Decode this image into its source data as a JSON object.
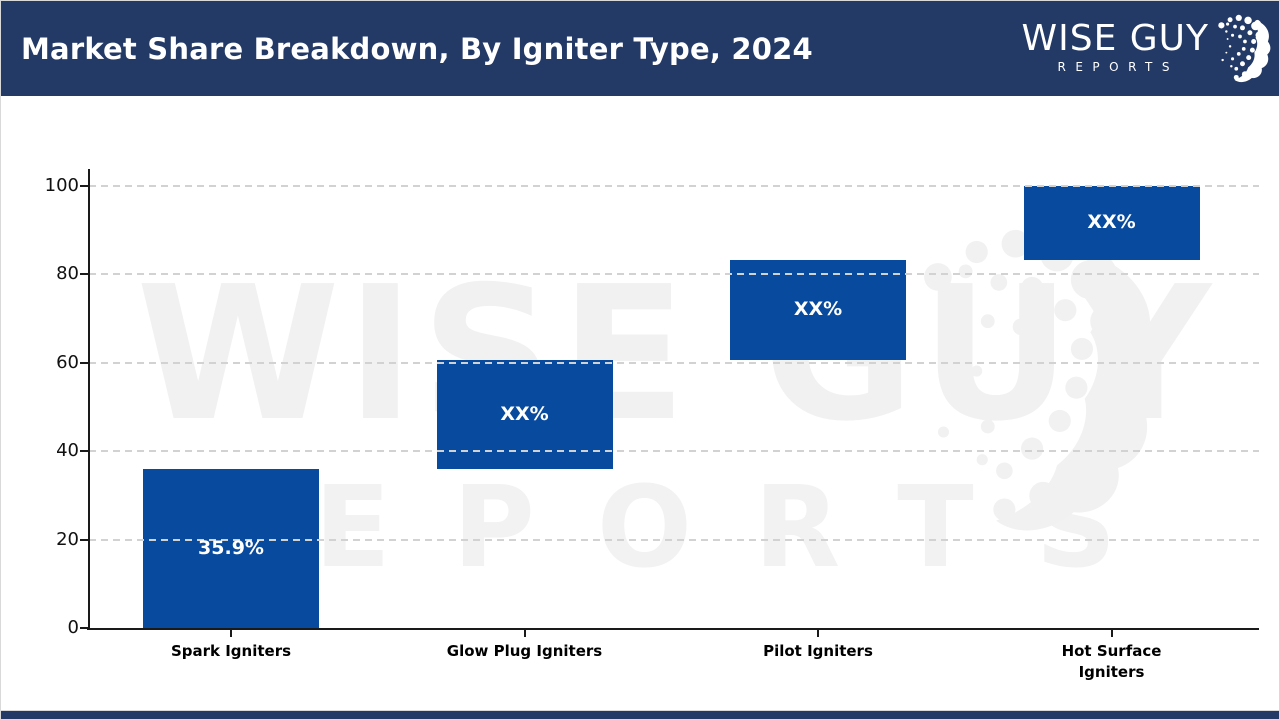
{
  "header": {
    "title": "Market Share Breakdown, By Igniter Type, 2024",
    "logo": {
      "line1": "WISE GUY",
      "line2": "REPORTS"
    }
  },
  "watermark": {
    "line1": "WISE GUY",
    "line2": "REPORTS"
  },
  "footer": {},
  "colors": {
    "header_bg": "#233966",
    "footer_bg": "#233966",
    "bar_fill": "#084a9d",
    "bar_label_text": "#ffffff",
    "grid": "#d2d2d2",
    "axis": "#1a1a1a",
    "watermark": "#f1f1f1"
  },
  "chart_data": {
    "type": "bar",
    "subtype": "waterfall",
    "title": "Market Share Breakdown, By Igniter Type, 2024",
    "xlabel": "",
    "ylabel": "",
    "ylim": [
      0,
      105
    ],
    "yticks": [
      0,
      20,
      40,
      60,
      80,
      100
    ],
    "grid": "horizontal-dashed",
    "categories": [
      "Spark Igniters",
      "Glow Plug Igniters",
      "Pilot Igniters",
      "Hot Surface Igniters"
    ],
    "segments": [
      {
        "category": "Spark Igniters",
        "tick_label": "Spark Igniters",
        "start": 0,
        "end": 35.9,
        "value_label": "35.9%"
      },
      {
        "category": "Glow Plug Igniters",
        "tick_label": "Glow Plug Igniters",
        "start": 35.9,
        "end": 60.7,
        "value_label": "XX%"
      },
      {
        "category": "Pilot Igniters",
        "tick_label": "Pilot Igniters",
        "start": 60.7,
        "end": 83.2,
        "value_label": "XX%"
      },
      {
        "category": "Hot Surface Igniters",
        "tick_label": "Hot Surface\nIgniters",
        "start": 83.2,
        "end": 100,
        "value_label": "XX%"
      }
    ]
  }
}
